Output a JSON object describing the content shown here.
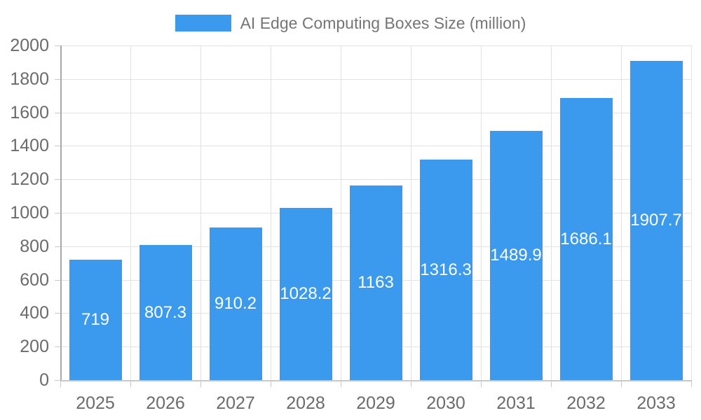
{
  "legend": {
    "label": "AI Edge Computing Boxes Size (million)"
  },
  "chart_data": {
    "type": "bar",
    "title": "",
    "xlabel": "",
    "ylabel": "",
    "series_name": "AI Edge Computing Boxes Size (million)",
    "categories": [
      "2025",
      "2026",
      "2027",
      "2028",
      "2029",
      "2030",
      "2031",
      "2032",
      "2033"
    ],
    "values": [
      719,
      807.3,
      910.2,
      1028.2,
      1163,
      1316.3,
      1489.9,
      1686.1,
      1907.7
    ],
    "value_labels": [
      "719",
      "807.3",
      "910.2",
      "1028.2",
      "1163",
      "1316.3",
      "1489.9",
      "1686.1",
      "1907.7"
    ],
    "ylim": [
      0,
      2000
    ],
    "yticks": [
      0,
      200,
      400,
      600,
      800,
      1000,
      1200,
      1400,
      1600,
      1800,
      2000
    ],
    "grid": true,
    "legend_position": "top-center",
    "colors": {
      "bar": "#3b99ee",
      "value_label": "#ffffff",
      "grid": "#e2e2e2",
      "axis_y": "#a9a9a9",
      "axis_x": "#c8c8c8",
      "tick": "#c8c8c8",
      "tick_label": "#6b6b6b",
      "legend_text": "#757575",
      "background": "#ffffff"
    }
  }
}
